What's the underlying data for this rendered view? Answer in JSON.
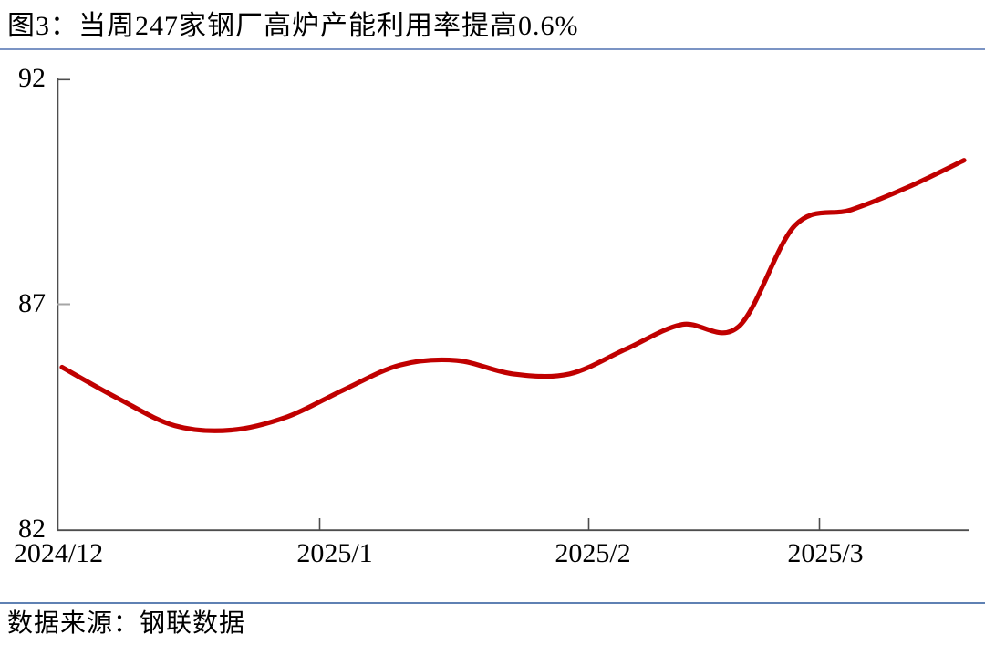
{
  "figure": {
    "title": "图3：当周247家钢厂高炉产能利用率提高0.6%",
    "source": "数据来源：钢联数据"
  },
  "axes": {
    "y_ticks": {
      "t92": "92",
      "t87": "87",
      "t82": "82"
    },
    "x_ticks": {
      "t0": "2024/12",
      "t1": "2025/1",
      "t2": "2025/2",
      "t3": "2025/3"
    }
  },
  "colors": {
    "line": "#c00000",
    "axis": "#4d4d4d",
    "minor_tick": "#a6a6a6",
    "rule_top": "#7b94c4",
    "rule_bottom": "#5f81b3"
  },
  "chart_data": {
    "type": "line",
    "title": "当周247家钢厂高炉产能利用率提高0.6%",
    "x": [
      "2024/11/29",
      "2024/12/6",
      "2024/12/13",
      "2024/12/20",
      "2024/12/27",
      "2025/1/3",
      "2025/1/10",
      "2025/1/17",
      "2025/1/24",
      "2025/1/31",
      "2025/2/7",
      "2025/2/14",
      "2025/2/21",
      "2025/2/28",
      "2025/3/7",
      "2025/3/14",
      "2025/3/21"
    ],
    "series": [
      {
        "name": "247家钢厂高炉产能利用率(%)",
        "color": "#c00000",
        "values": [
          85.6,
          84.9,
          84.3,
          84.2,
          84.5,
          85.1,
          85.65,
          85.75,
          85.45,
          85.45,
          86.0,
          86.55,
          86.5,
          88.75,
          89.1,
          89.6,
          90.2
        ]
      }
    ],
    "xlabel": "",
    "ylabel": "",
    "ylim": [
      82,
      92
    ],
    "y_tick_values": [
      82,
      87,
      92
    ],
    "x_tick_labels": [
      "2024/12",
      "2025/1",
      "2025/2",
      "2025/3"
    ],
    "grid": false,
    "legend": "none",
    "line_style": "smooth"
  }
}
